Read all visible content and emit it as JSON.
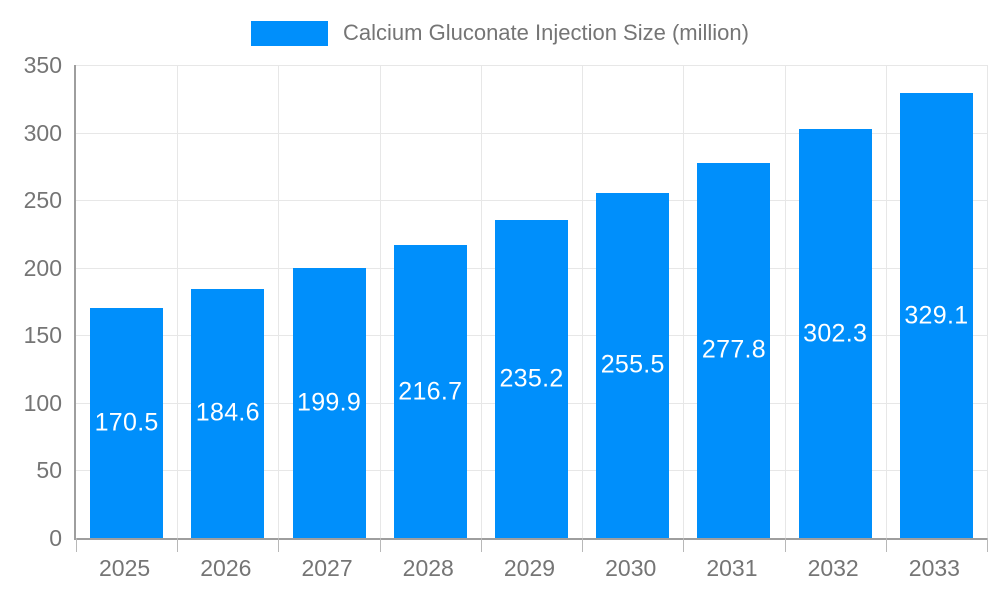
{
  "legend": {
    "series_label": "Calcium Gluconate Injection Size (million)"
  },
  "chart_data": {
    "type": "bar",
    "title": "Calcium Gluconate Injection Size (million)",
    "categories": [
      "2025",
      "2026",
      "2027",
      "2028",
      "2029",
      "2030",
      "2031",
      "2032",
      "2033"
    ],
    "values": [
      170.5,
      184.6,
      199.9,
      216.7,
      235.2,
      255.5,
      277.8,
      302.3,
      329.1
    ],
    "xlabel": "",
    "ylabel": "",
    "ylim": [
      0,
      350
    ],
    "ytick_step": 50,
    "grid": "both",
    "legend_position": "top",
    "value_label_position": "inside-center"
  },
  "colors": {
    "bar": "#008FFB",
    "grid": "#e7e7e7",
    "axis_line": "#9e9e9e",
    "tick": "#b8b8b8",
    "label_text": "#757575",
    "value_label": "#ffffff",
    "background": "#ffffff"
  }
}
